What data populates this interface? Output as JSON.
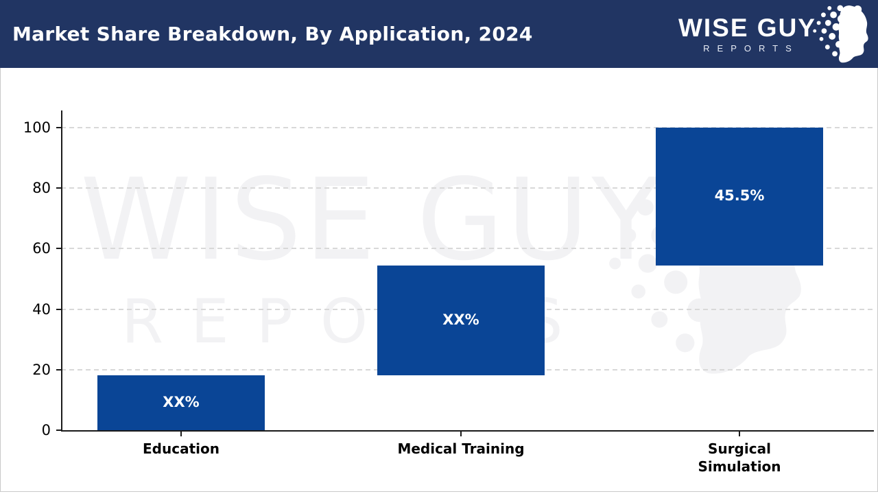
{
  "header": {
    "title": "Market Share Breakdown, By Application, 2024",
    "logo": {
      "line1": "WISE GUY",
      "line2": "REPORTS"
    }
  },
  "watermark": {
    "line1": "WISE GUY",
    "line2": "REPORTS"
  },
  "colors": {
    "header_bg": "#213563",
    "chart_bg": "#ffffff",
    "bar": "#0a4596",
    "bar_label": "#ffffff",
    "gridline": "#d8d8d8",
    "axis": "#1a1a1a",
    "tick_label": "#000000",
    "watermark": "#f2f2f4",
    "border": "#c9c9c9"
  },
  "chart_data": {
    "type": "bar",
    "subtype": "stacked-waterfall",
    "title": "Market Share Breakdown, By Application, 2024",
    "xlabel": "",
    "ylabel": "",
    "units": "percent market share",
    "categories": [
      "Education",
      "Medical Training",
      "Surgical Simulation"
    ],
    "segments": [
      {
        "category": "Education",
        "category_lines": [
          "Education"
        ],
        "start": 0,
        "end": 18.2,
        "value": 18.2,
        "label": "XX%"
      },
      {
        "category": "Medical Training",
        "category_lines": [
          "Medical Training"
        ],
        "start": 18.2,
        "end": 54.5,
        "value": 36.3,
        "label": "XX%"
      },
      {
        "category": "Surgical Simulation",
        "category_lines": [
          "Surgical",
          "Simulation"
        ],
        "start": 54.5,
        "end": 100,
        "value": 45.5,
        "label": "45.5%"
      }
    ],
    "yticks": [
      0,
      20,
      40,
      60,
      80,
      100
    ],
    "ylim": [
      0,
      105
    ],
    "grid": "horizontal-dashed",
    "legend": "none"
  }
}
